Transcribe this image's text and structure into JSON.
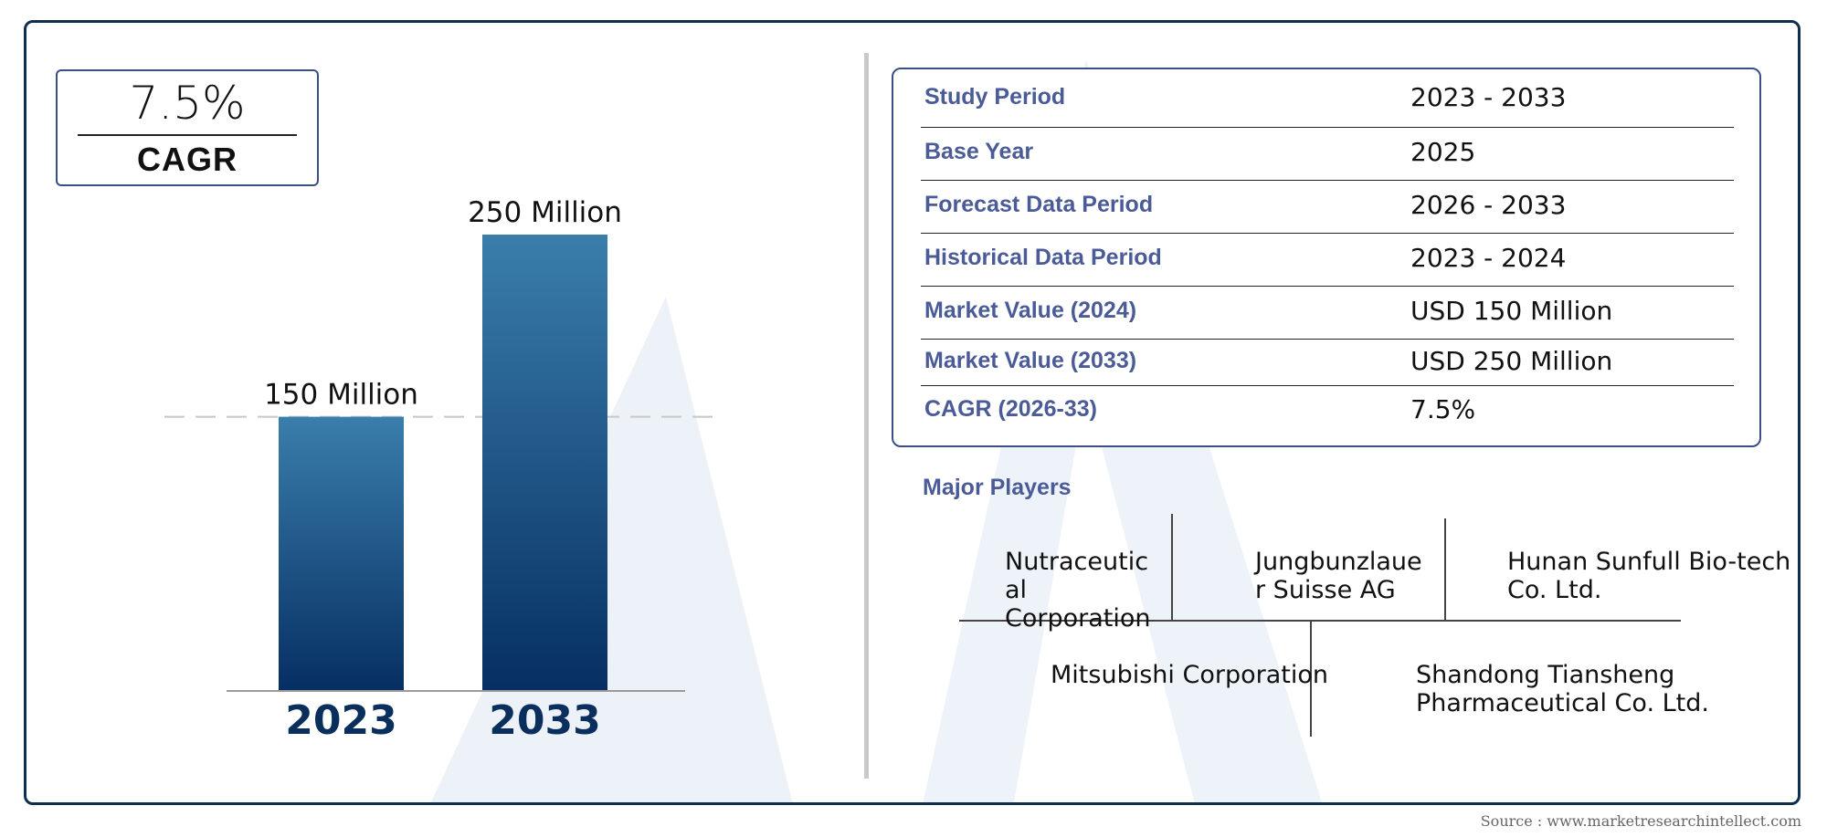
{
  "cagr_badge": {
    "value": "7.5%",
    "label": "CAGR"
  },
  "chart_data": {
    "type": "bar",
    "categories": [
      "2023",
      "2033"
    ],
    "values": [
      150,
      250
    ],
    "data_labels": [
      "150 Million",
      "250 Million"
    ],
    "unit": "Million",
    "reference_line": 150,
    "ylim": [
      0,
      250
    ],
    "title": "",
    "xlabel": "",
    "ylabel": ""
  },
  "info_table": [
    {
      "key": "Study Period",
      "value": "2023 - 2033"
    },
    {
      "key": "Base Year",
      "value": "2025"
    },
    {
      "key": "Forecast Data Period",
      "value": "2026 - 2033"
    },
    {
      "key": "Historical Data Period",
      "value": "2023 - 2024"
    },
    {
      "key": "Market Value (2024)",
      "value": "USD 150 Million"
    },
    {
      "key": "Market Value (2033)",
      "value": "USD 250 Million"
    },
    {
      "key": "CAGR (2026-33)",
      "value": "7.5%"
    }
  ],
  "major_players": {
    "title": "Major Players",
    "items": [
      "Nutraceutic\nal\nCorporation",
      "Jungbunzlaue\nr Suisse AG",
      "Hunan Sunfull Bio-tech\nCo. Ltd.",
      "Mitsubishi Corporation",
      "Shandong Tiansheng\nPharmaceutical Co. Ltd."
    ]
  },
  "source": "Source : www.marketresearchintellect.com",
  "colors": {
    "bar_top": "#3a7eab",
    "bar_bottom": "#062f63",
    "frame": "#0e2f4f",
    "box_border": "#3b4e86",
    "label_blue": "#4a5b97"
  }
}
